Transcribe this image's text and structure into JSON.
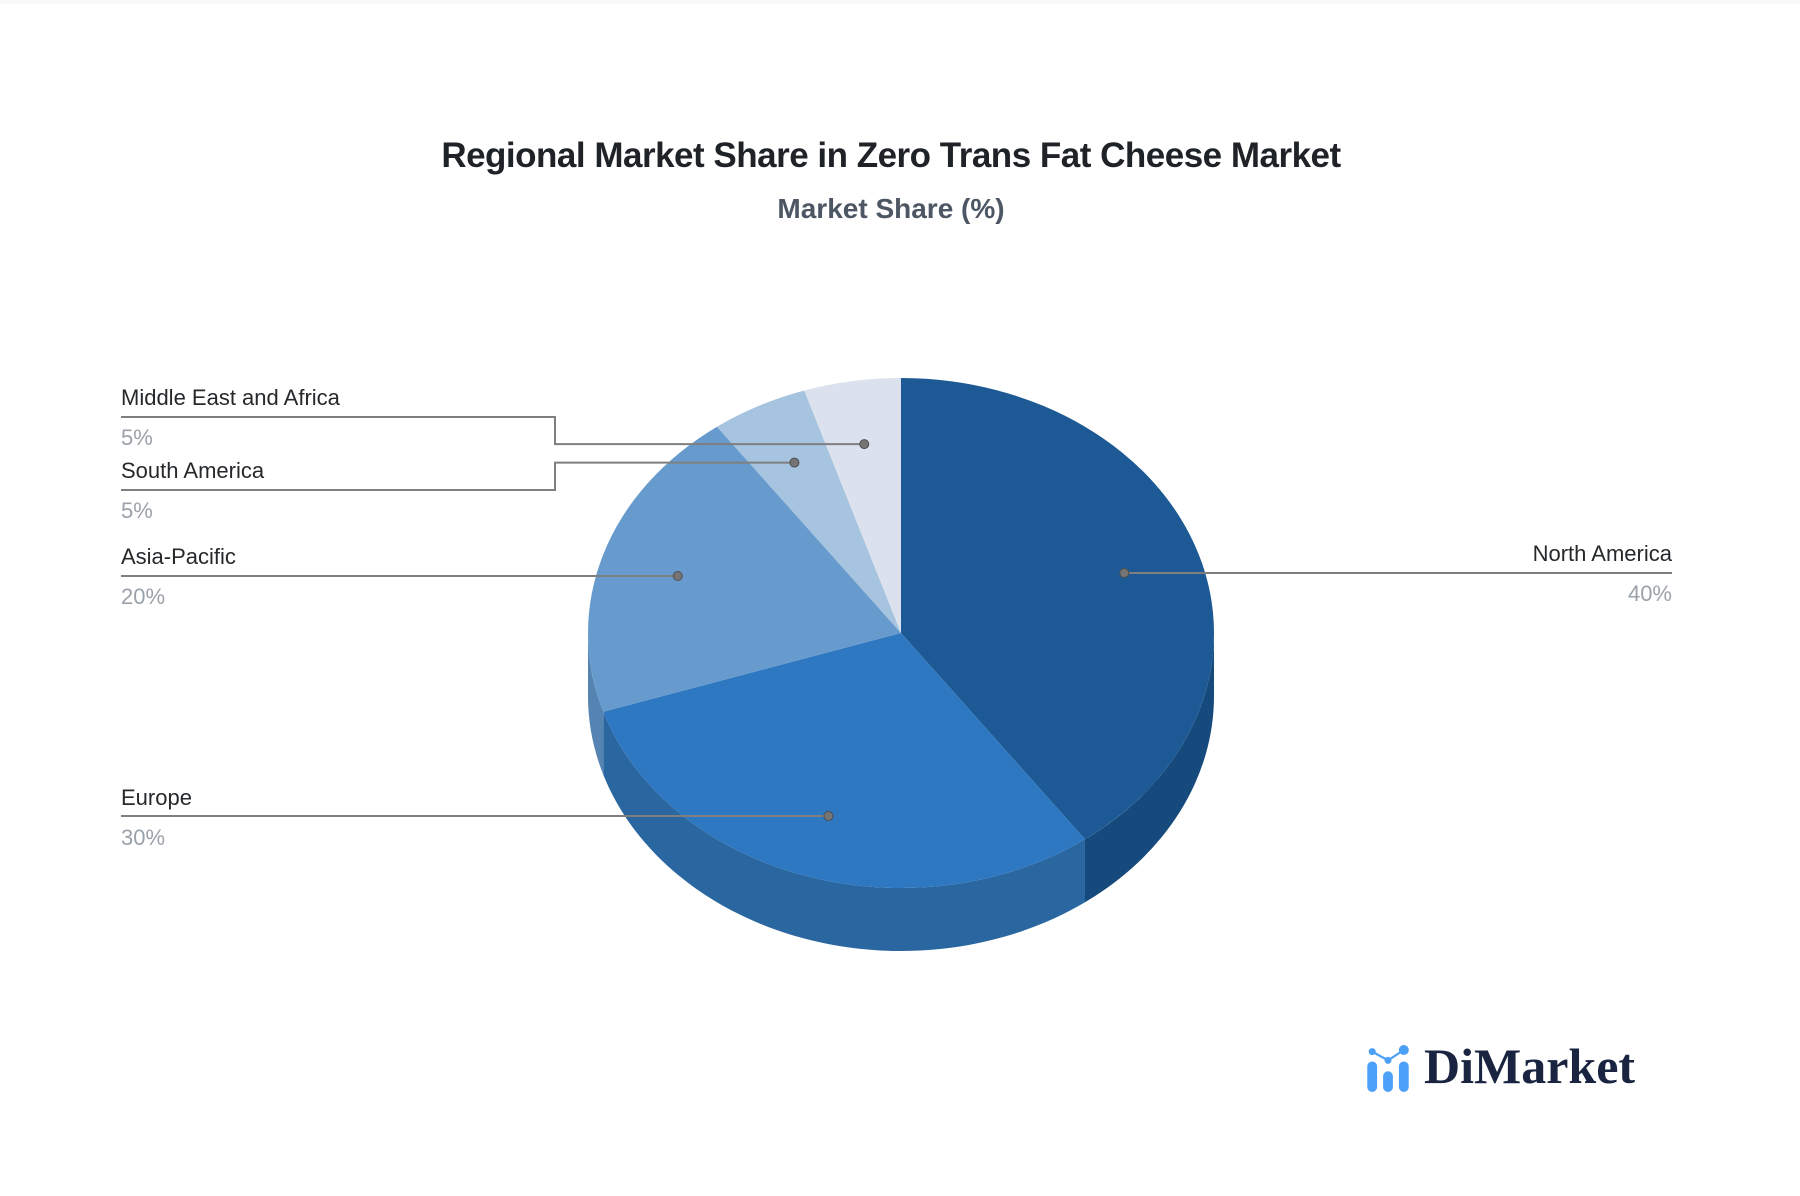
{
  "page": {
    "background": "#ffffff",
    "top_strip_color": "#f7f8f9"
  },
  "header": {
    "title": "Regional Market Share in Zero Trans Fat Cheese Market",
    "subtitle": "Market Share (%)",
    "title_color": "#1f2328",
    "subtitle_color": "#4d5663"
  },
  "branding": {
    "name": "DiMarket",
    "text_color": "#1a2440",
    "icon": "bar-line-chart-icon",
    "icon_color": "#4da0f7"
  },
  "chart_data": {
    "type": "pie",
    "style": "3d",
    "title": "Regional Market Share in Zero Trans Fat Cheese Market",
    "subtitle": "Market Share (%)",
    "unit": "%",
    "start_angle_deg": 0,
    "direction": "clockwise",
    "legend_position": "callout-labels",
    "label_text_color": "#26292c",
    "value_text_color": "#9aa1a9",
    "leader_line_color": "#7f7f7f",
    "series": [
      {
        "label": "North America",
        "value": 40,
        "display_value": "40%",
        "color": "#1d5a95",
        "side_color": "#164a7c"
      },
      {
        "label": "Europe",
        "value": 30,
        "display_value": "30%",
        "color": "#2e78c2",
        "side_color": "#2a66a0"
      },
      {
        "label": "Asia-Pacific",
        "value": 20,
        "display_value": "20%",
        "color": "#689bcd",
        "side_color": "#5584b2"
      },
      {
        "label": "South America",
        "value": 5,
        "display_value": "5%",
        "color": "#a6c3e0",
        "side_color": "#8eadcc"
      },
      {
        "label": "Middle East and Africa",
        "value": 5,
        "display_value": "5%",
        "color": "#dbe2ed",
        "side_color": "#c3cedd"
      }
    ]
  }
}
